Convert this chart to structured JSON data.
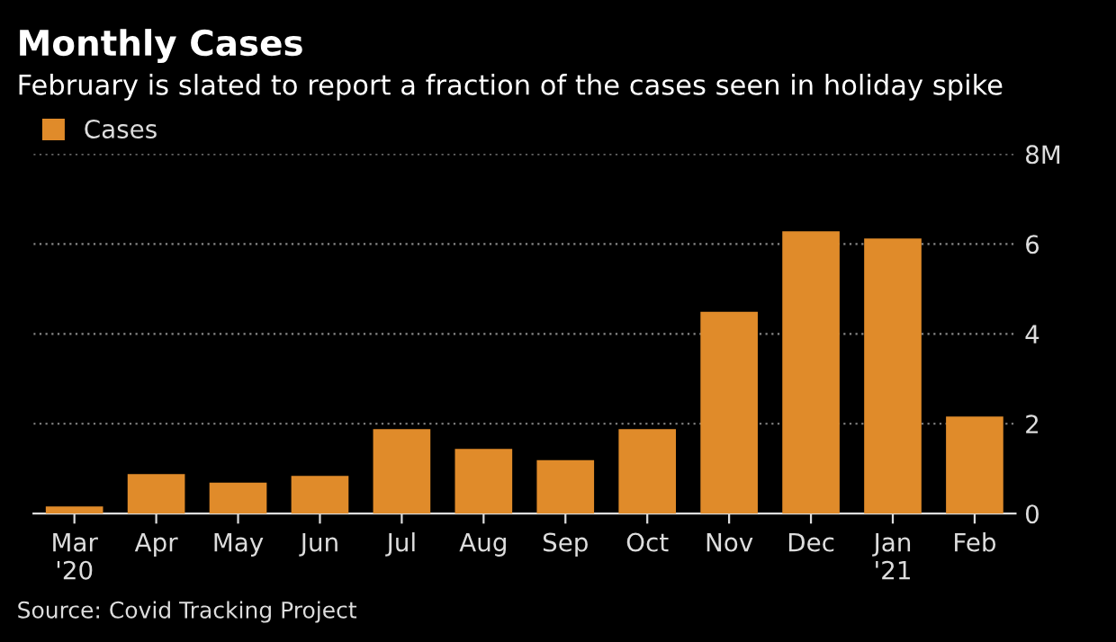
{
  "chart_data": {
    "type": "bar",
    "title": "Monthly Cases",
    "subtitle": "February is slated to report a fraction of the cases seen in holiday spike",
    "categories": [
      "Mar\n'20",
      "Apr",
      "May",
      "Jun",
      "Jul",
      "Aug",
      "Sep",
      "Oct",
      "Nov",
      "Dec",
      "Jan\n'21",
      "Feb"
    ],
    "series": [
      {
        "name": "Cases",
        "color": "#e08b2a",
        "values": [
          0.16,
          0.88,
          0.69,
          0.84,
          1.88,
          1.44,
          1.19,
          1.88,
          4.49,
          6.28,
          6.12,
          2.16
        ]
      }
    ],
    "ylim": [
      0,
      8
    ],
    "yticks": [
      0,
      2,
      4,
      6,
      {
        "value": 8,
        "label": "8M"
      }
    ],
    "grid": "y",
    "legend": "top left",
    "annotations": [
      "Source: Covid Tracking Project"
    ]
  }
}
